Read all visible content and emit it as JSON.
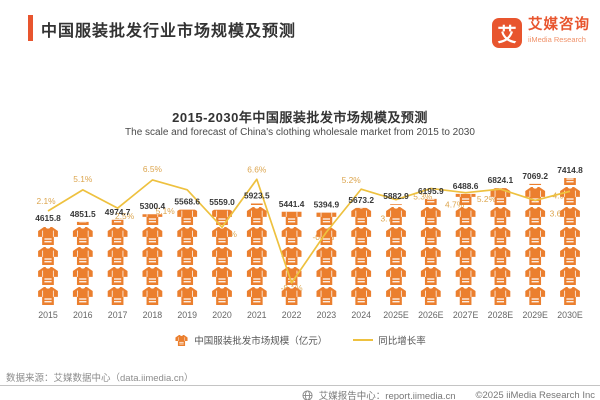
{
  "header": {
    "accent_color": "#E8552E",
    "title": "中国服装批发行业市场规模及预测",
    "logo": {
      "glyph": "艾",
      "name": "艾媒咨询",
      "subname": "iiMedia Research",
      "color": "#E8552E"
    }
  },
  "chart": {
    "title": "2015-2030年中国服装批发市场规模及预测",
    "subtitle": "The scale and forecast of China's clothing wholesale market from 2015 to 2030"
  },
  "chart_data": {
    "type": "bar",
    "subtype": "pictogram-bar-with-growth-line",
    "title": "2015-2030年中国服装批发市场规模及预测",
    "categories": [
      "2015",
      "2016",
      "2017",
      "2018",
      "2019",
      "2020",
      "2021",
      "2022",
      "2023",
      "2024",
      "2025E",
      "2026E",
      "2027E",
      "2028E",
      "2029E",
      "2030E"
    ],
    "series": [
      {
        "name": "中国服装批发市场规模（亿元）",
        "type": "bar",
        "color": "#EB7F2E",
        "icon": "clothes-icon",
        "values": [
          4615.8,
          4851.5,
          4974.7,
          5300.4,
          5568.6,
          5559.0,
          5923.5,
          5441.4,
          5394.9,
          5673.2,
          5882.9,
          6195.9,
          6488.6,
          6824.1,
          7069.2,
          7414.8
        ],
        "value_labels": [
          "4615.8",
          "4851.5",
          "4974.7",
          "5300.4",
          "5568.6",
          "5559.0",
          "5923.5",
          "5441.4",
          "5394.9",
          "5673.2",
          "5882.9",
          "6195.9",
          "6488.6",
          "6824.1",
          "7069.2",
          "7414.8"
        ]
      },
      {
        "name": "同比增长率",
        "type": "line",
        "color": "#EEC13F",
        "label_color": "#DCA54E",
        "values": [
          2.1,
          5.1,
          2.5,
          6.5,
          5.1,
          -0.2,
          6.6,
          -8.1,
          -0.9,
          5.2,
          3.7,
          5.3,
          4.7,
          5.2,
          3.6,
          4.9
        ],
        "value_labels": [
          "2.1%",
          "5.1%",
          "2.5%",
          "6.5%",
          "5.1%",
          "-0.2%",
          "6.6%",
          "-8.1%",
          "-0.9%",
          "5.2%",
          "3.7%",
          "5.3%",
          "4.7%",
          "5.2%",
          "3.6%",
          "4.9%"
        ]
      }
    ],
    "ylim_bar": [
      0,
      7800
    ],
    "ylim_line_pct": [
      -10,
      8
    ],
    "grid": false,
    "legend_position": "bottom"
  },
  "footer": {
    "source": "数据来源：艾媒数据中心（data.iimedia.cn）",
    "report": "艾媒报告中心：report.iimedia.cn",
    "copyright": "©2025  iiMedia Research  Inc"
  }
}
